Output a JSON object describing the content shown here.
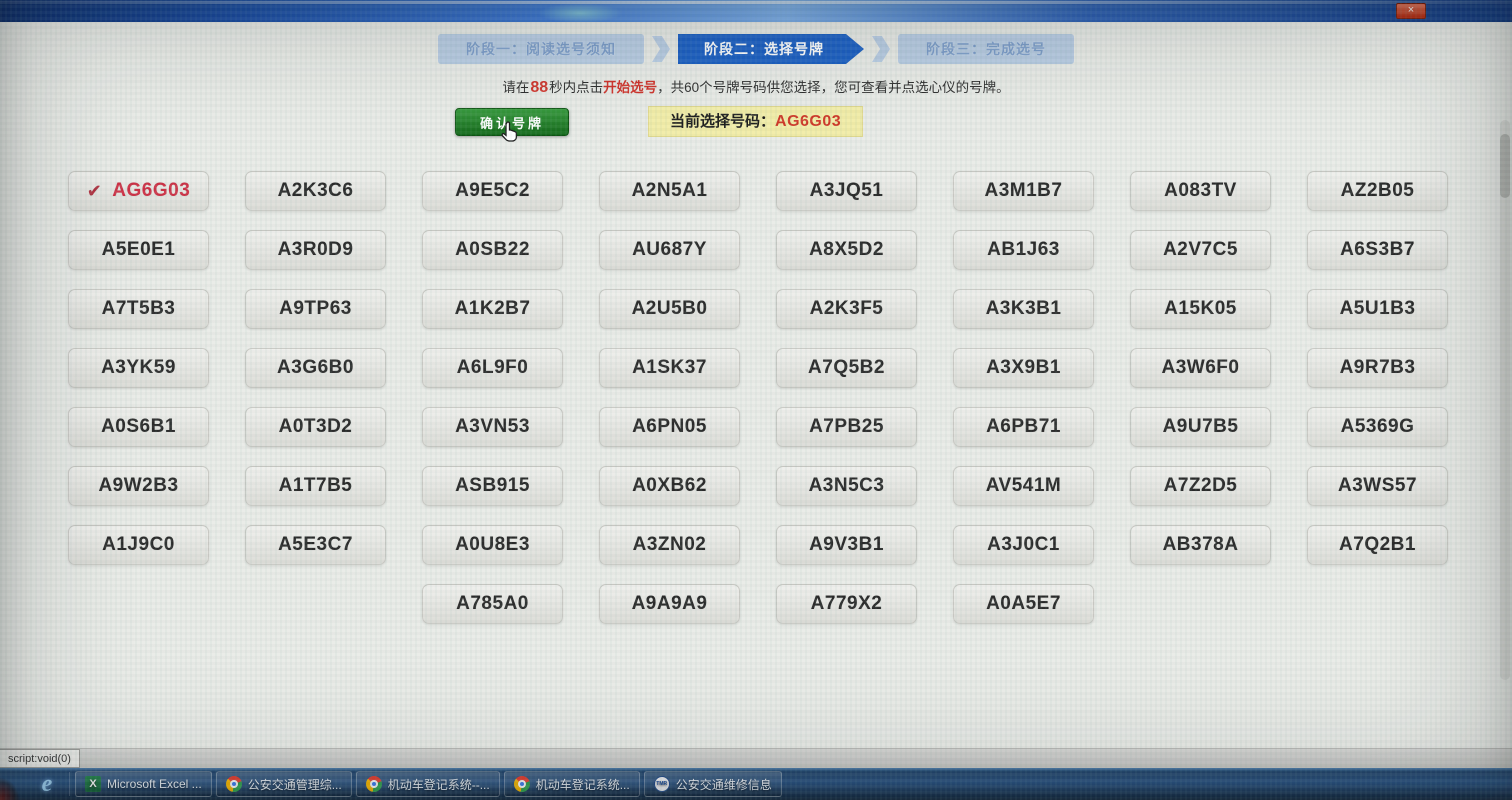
{
  "stages": [
    {
      "label": "阶段一：阅读选号须知",
      "active": false
    },
    {
      "label": "阶段二：选择号牌",
      "active": true
    },
    {
      "label": "阶段三：完成选号",
      "active": false
    }
  ],
  "instruction": {
    "prefix": "请在",
    "seconds": "88",
    "middle": "秒内点击",
    "action": "开始选号",
    "suffix": "，共60个号牌号码供您选择，您可查看并点选心仪的号牌。"
  },
  "confirm": {
    "label": "确认号牌"
  },
  "selection": {
    "label": "当前选择号码：",
    "value": "AG6G03"
  },
  "plates": {
    "selected": "AG6G03",
    "rows": [
      [
        "AG6G03",
        "A2K3C6",
        "A9E5C2",
        "A2N5A1",
        "A3JQ51",
        "A3M1B7",
        "A083TV",
        "AZ2B05"
      ],
      [
        "A5E0E1",
        "A3R0D9",
        "A0SB22",
        "AU687Y",
        "A8X5D2",
        "AB1J63",
        "A2V7C5",
        "A6S3B7"
      ],
      [
        "A7T5B3",
        "A9TP63",
        "A1K2B7",
        "A2U5B0",
        "A2K3F5",
        "A3K3B1",
        "A15K05",
        "A5U1B3"
      ],
      [
        "A3YK59",
        "A3G6B0",
        "A6L9F0",
        "A1SK37",
        "A7Q5B2",
        "A3X9B1",
        "A3W6F0",
        "A9R7B3"
      ],
      [
        "A0S6B1",
        "A0T3D2",
        "A3VN53",
        "A6PN05",
        "A7PB25",
        "A6PB71",
        "A9U7B5",
        "A5369G"
      ],
      [
        "A9W2B3",
        "A1T7B5",
        "ASB915",
        "A0XB62",
        "A3N5C3",
        "AV541M",
        "A7Z2D5",
        "A3WS57"
      ],
      [
        "A1J9C0",
        "A5E3C7",
        "A0U8E3",
        "A3ZN02",
        "A9V3B1",
        "A3J0C1",
        "AB378A",
        "A7Q2B1"
      ],
      [
        null,
        null,
        "A785A0",
        "A9A9A9",
        "A779X2",
        "A0A5E7",
        null,
        null
      ]
    ]
  },
  "status": {
    "text": "script:void(0)"
  },
  "taskbar": {
    "buttons": [
      {
        "icon": "excel-icon",
        "label": "Microsoft Excel ..."
      },
      {
        "icon": "chrome-icon",
        "label": "公安交通管理综..."
      },
      {
        "icon": "chrome-icon",
        "label": "机动车登记系统--..."
      },
      {
        "icon": "chrome-icon",
        "label": "机动车登记系统..."
      },
      {
        "icon": "tmr-icon",
        "label": "公安交通维修信息"
      }
    ]
  },
  "colors": {
    "active_tab_blue": "#1d61c4",
    "inactive_tab_blue": "#b9cde4",
    "confirm_green": "#1e7d24",
    "selection_yellow": "#f2eda9",
    "alert_red": "#d0342c",
    "selected_plate_red": "#ce3146"
  }
}
